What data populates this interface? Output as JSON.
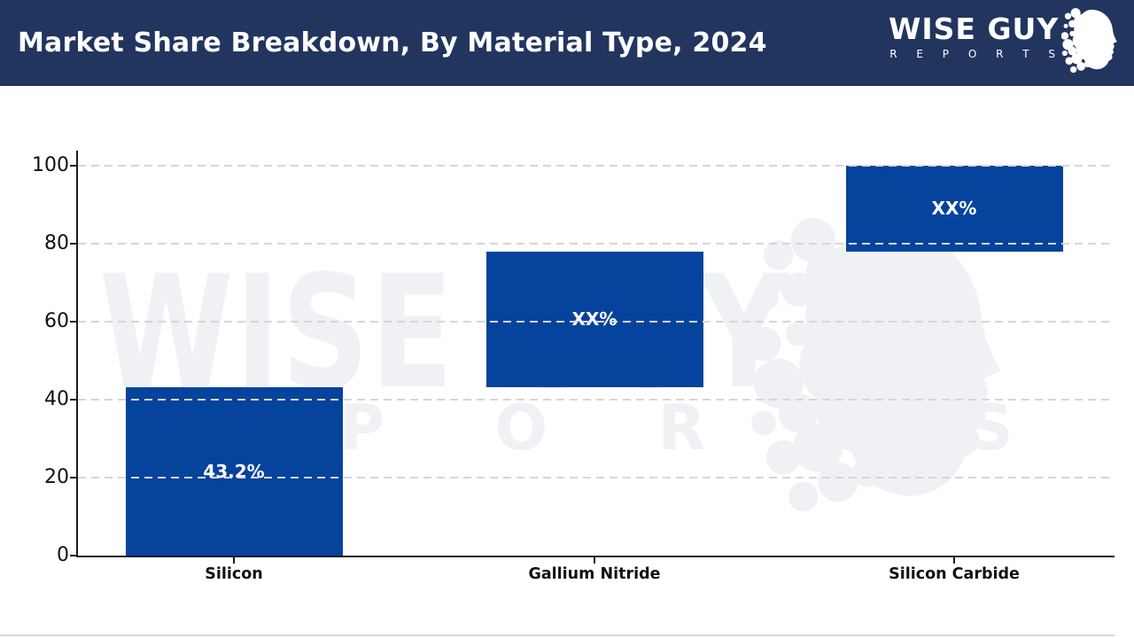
{
  "header": {
    "title": "Market Share Breakdown, By Material Type, 2024",
    "logo": {
      "name": "WISE GUY",
      "subtitle": "R E P O R T S"
    }
  },
  "watermark": {
    "line1": "WISE GUY",
    "line2": "P O R T S"
  },
  "chart_data": {
    "type": "bar",
    "subtype": "stacked-waterfall-segments",
    "title": "Market Share Breakdown, By Material Type, 2024",
    "categories": [
      "Silicon",
      "Gallium Nitride",
      "Silicon Carbide"
    ],
    "segments": [
      {
        "category": "Silicon",
        "start": 0,
        "end": 43.2,
        "label": "43.2%"
      },
      {
        "category": "Gallium Nitride",
        "start": 43.2,
        "end": 78,
        "label": "XX%"
      },
      {
        "category": "Silicon Carbide",
        "start": 78,
        "end": 100,
        "label": "XX%"
      }
    ],
    "xlabel": "",
    "ylabel": "",
    "ylim": [
      0,
      100
    ],
    "yticks": [
      0,
      20,
      40,
      60,
      80,
      100
    ],
    "grid": "horizontal-dashed",
    "legend": "none",
    "bar_color": "#06439C",
    "label_color": "#ffffff"
  },
  "colors": {
    "header_bg": "#22355F",
    "bar": "#06439C",
    "grid": "#d6d6d6",
    "axis": "#1c1c1c",
    "watermark": "#f0f1f4",
    "title_text": "#ffffff"
  }
}
